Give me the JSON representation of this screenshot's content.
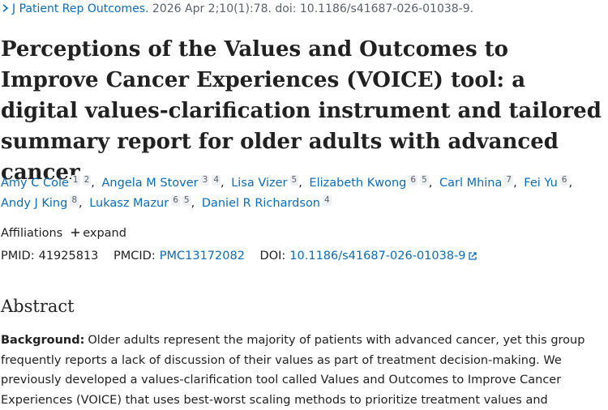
{
  "citation": {
    "journal": "J Patient Rep Outcomes.",
    "details": "2026 Apr 2;10(1):78. doi: 10.1186/s41687-026-01038-9."
  },
  "title": "Perceptions of the Values and Outcomes to Improve Cancer Experiences (VOICE) tool: a digital values-clarification instrument and tailored summary report for older adults with advanced cancer",
  "authors": [
    {
      "name": "Amy C Cole",
      "affiliations": [
        "1",
        "2"
      ]
    },
    {
      "name": "Angela M Stover",
      "affiliations": [
        "3",
        "4"
      ]
    },
    {
      "name": "Lisa Vizer",
      "affiliations": [
        "5"
      ]
    },
    {
      "name": "Elizabeth Kwong",
      "affiliations": [
        "6",
        "5"
      ]
    },
    {
      "name": "Carl Mhina",
      "affiliations": [
        "7"
      ]
    },
    {
      "name": "Fei Yu",
      "affiliations": [
        "6"
      ]
    },
    {
      "name": "Andy J King",
      "affiliations": [
        "8"
      ]
    },
    {
      "name": "Lukasz Mazur",
      "affiliations": [
        "6",
        "5"
      ]
    },
    {
      "name": "Daniel R Richardson",
      "affiliations": [
        "4"
      ]
    }
  ],
  "affiliations": {
    "label": "Affiliations",
    "toggle": "expand"
  },
  "identifiers": {
    "pmid": {
      "label": "PMID:",
      "value": "41925813"
    },
    "pmcid": {
      "label": "PMCID:",
      "value": "PMC13172082"
    },
    "doi": {
      "label": "DOI:",
      "value": "10.1186/s41687-026-01038-9"
    }
  },
  "abstract": {
    "heading": "Abstract",
    "background": {
      "label": "Background:",
      "text": "Older adults represent the majority of patients with advanced cancer, yet this group frequently reports a lack of discussion of their values as part of treatment decision-making. We previously developed a values-clarification tool called Values and Outcomes to Improve Cancer Experiences (VOICE) that uses best-worst scaling methods to prioritize treatment values and"
    }
  }
}
